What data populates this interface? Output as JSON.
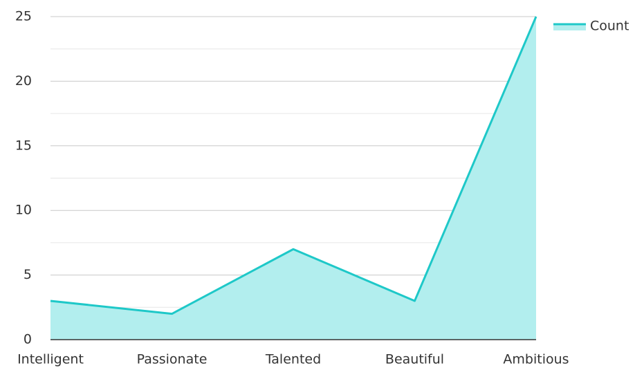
{
  "chart_data": {
    "type": "area",
    "categories": [
      "Intelligent",
      "Passionate",
      "Talented",
      "Beautiful",
      "Ambitious"
    ],
    "series": [
      {
        "name": "Count",
        "color": "#1ec8c8",
        "fill": "#b2eeee",
        "values": [
          3,
          2,
          7,
          3,
          25
        ]
      }
    ],
    "ylim": [
      0,
      25
    ],
    "yticks": [
      0,
      5,
      10,
      15,
      20,
      25
    ],
    "minor_yticks": [
      2.5,
      7.5,
      12.5,
      17.5,
      22.5
    ],
    "grid": true,
    "legend": "top-right"
  }
}
